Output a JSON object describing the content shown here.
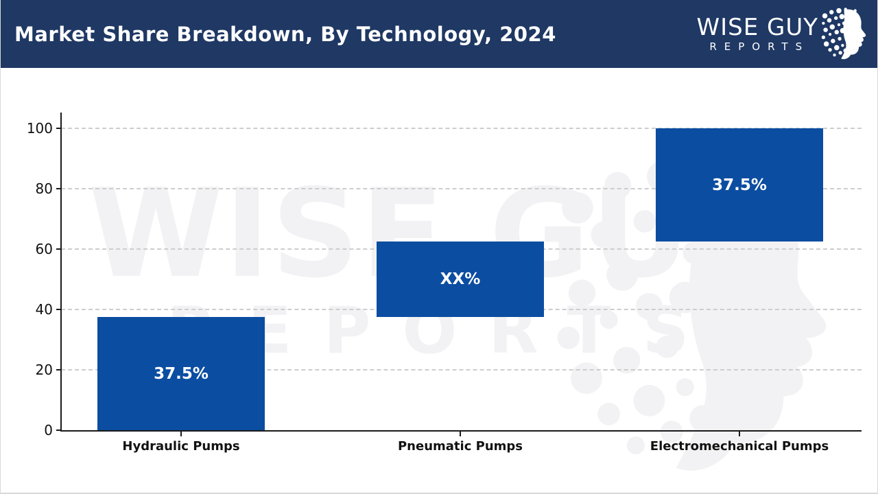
{
  "header": {
    "title": "Market Share Breakdown, By Technology, 2024",
    "bg_color": "#1f3864",
    "logo": {
      "brand_line1": "WISE GUY",
      "brand_line2": "REPORTS",
      "icon": "dotted-head-icon"
    }
  },
  "watermark": {
    "line1": "WISE GUY",
    "line2": "REPORTS",
    "icon": "dotted-head-icon",
    "color": "#f2f2f4"
  },
  "chart_data": {
    "type": "bar",
    "subtype": "floating-segments",
    "title": "Market Share Breakdown, By Technology, 2024",
    "categories": [
      "Hydraulic Pumps",
      "Pneumatic Pumps",
      "Electromechanical Pumps"
    ],
    "bars": [
      {
        "category": "Hydraulic Pumps",
        "from": 0,
        "to": 37.5,
        "label": "37.5%"
      },
      {
        "category": "Pneumatic Pumps",
        "from": 37.5,
        "to": 62.5,
        "label": "XX%"
      },
      {
        "category": "Electromechanical Pumps",
        "from": 62.5,
        "to": 100,
        "label": "37.5%"
      }
    ],
    "ylim": [
      0,
      100
    ],
    "yticks": [
      0,
      20,
      40,
      60,
      80,
      100
    ],
    "xlabel": "",
    "ylabel": "",
    "grid": "horizontal-dashed",
    "legend": "none",
    "bar_color": "#0b4da1",
    "bar_label_color": "#ffffff",
    "axis_color": "#1a1a1a",
    "gridline_color": "#cdcdcd"
  }
}
